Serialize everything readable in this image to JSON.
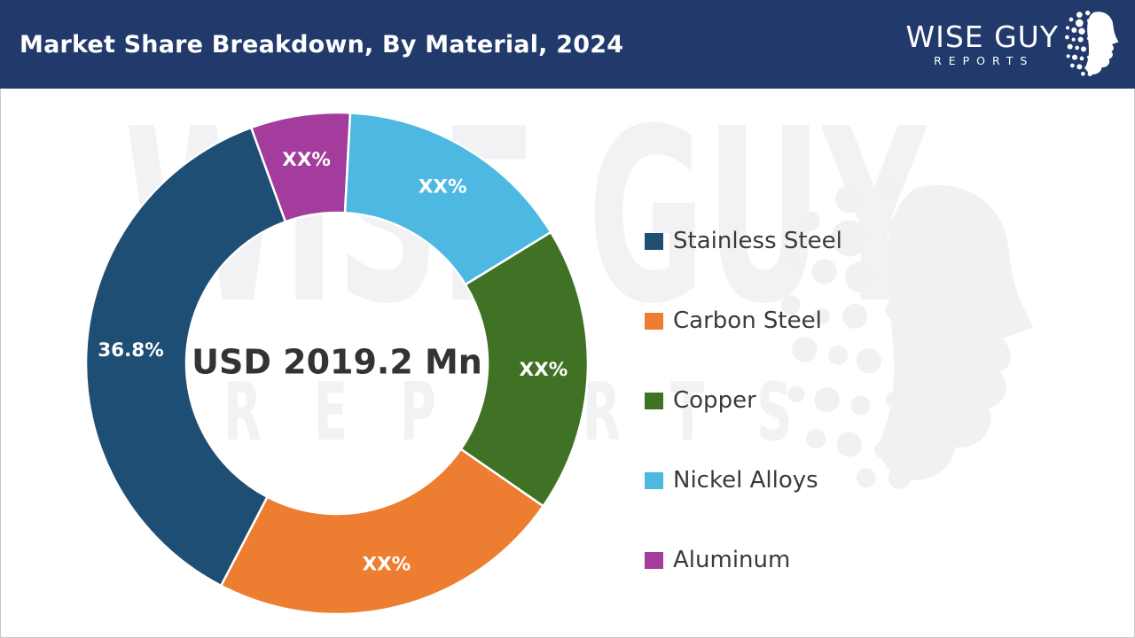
{
  "header": {
    "title": "Market Share Breakdown, By Material, 2024",
    "logo": {
      "line1": "WISE GUY",
      "line2": "REPORTS"
    }
  },
  "watermark": {
    "line1": "WISE GUY",
    "line2": "REPORTS"
  },
  "chart_data": {
    "type": "pie",
    "subtype": "donut",
    "title": "Market Share Breakdown, By Material, 2024",
    "center_label": "USD 2019.2 Mn",
    "legend_position": "right",
    "start_angle_deg": -20,
    "label_radius_px": 233,
    "slices": [
      {
        "name": "Stainless Steel",
        "label": "36.8%",
        "value_pct": 36.8,
        "color": "#1F4E74"
      },
      {
        "name": "Carbon Steel",
        "label": "XX%",
        "value_pct": 23.0,
        "color": "#ED7D31"
      },
      {
        "name": "Copper",
        "label": "XX%",
        "value_pct": 18.4,
        "color": "#407226"
      },
      {
        "name": "Nickel Alloys",
        "label": "XX%",
        "value_pct": 15.4,
        "color": "#4DB9E2"
      },
      {
        "name": "Aluminum",
        "label": "XX%",
        "value_pct": 6.4,
        "color": "#A33C9C"
      }
    ]
  },
  "colors": {
    "header_bg": "#213A6B",
    "center_text": "#333333",
    "legend_text": "#3A3A3A",
    "watermark": "#F2F2F5"
  }
}
